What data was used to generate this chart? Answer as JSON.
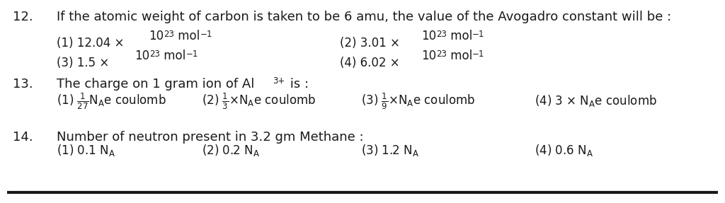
{
  "bg_color": "#ffffff",
  "text_color": "#1a1a1a",
  "bottom_line_color": "#1a1a1a",
  "font_size_q": 13.0,
  "font_size_opt": 12.0,
  "font_size_sup": 8.5,
  "q12_number": "12.",
  "q12_text": "If the atomic weight of carbon is taken to be 6 amu, the value of the Avogadro constant will be :",
  "q13_number": "13.",
  "q13_text": "The charge on 1 gram ion of Al",
  "q14_number": "14.",
  "q14_text": "Number of neutron present in 3.2 gm Methane :"
}
